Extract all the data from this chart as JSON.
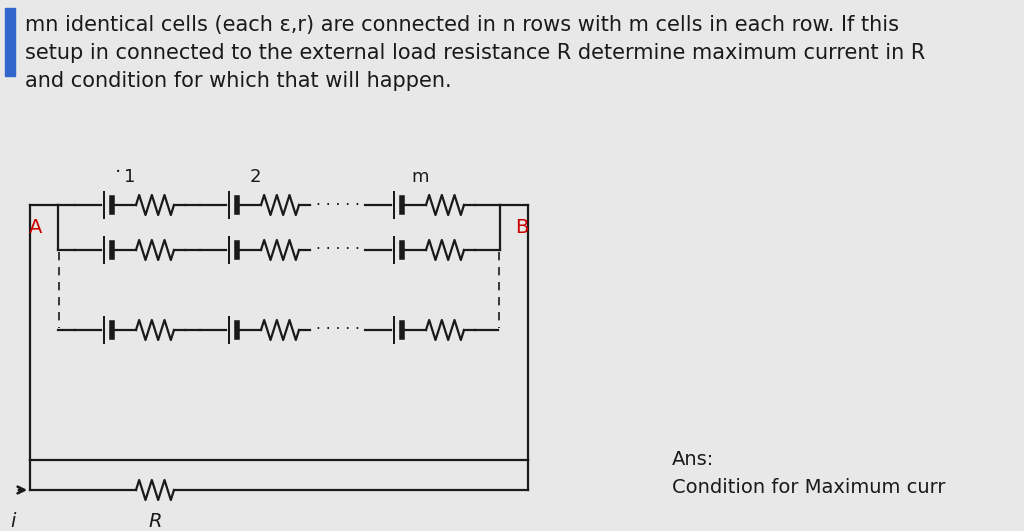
{
  "bg_color": "#e8e8e8",
  "inner_bg": "#ececec",
  "text_color": "#1a1a1a",
  "title_lines": [
    "mn identical cells (each ε,r) are connected in n rows with m cells in each row. If this",
    "setup in connected to the external load resistance R determine maximum current in R",
    "and condition for which that will happen."
  ],
  "label_A": "A",
  "label_B": "B",
  "label_i": "i",
  "label_R_ext": "R",
  "label_ans": "Ans:",
  "label_cond": "Condition for Maximum curr",
  "col_labels": [
    "1",
    "2",
    "m"
  ],
  "red_color": "#cc0000",
  "circuit_color": "#1a1a1a",
  "blue_bar_color": "#3366cc",
  "title_fontsize": 15,
  "label_fontsize": 14,
  "col_label_fontsize": 13,
  "ans_fontsize": 14,
  "circuit_lw": 1.6
}
